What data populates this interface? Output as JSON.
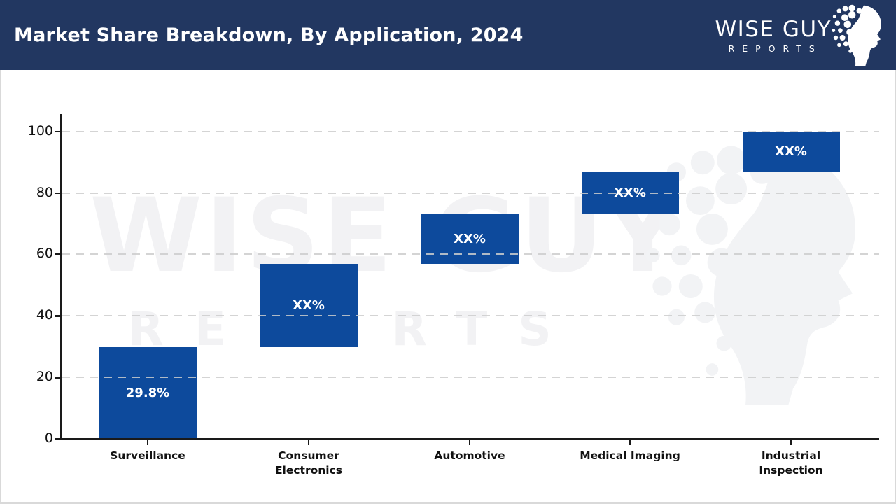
{
  "header": {
    "title": "Market Share Breakdown, By Application, 2024",
    "logo": {
      "name": "WISE GUY",
      "tagline": "REPORTS"
    }
  },
  "watermark": {
    "line1": "WISE GUY",
    "line2": "REPORTS"
  },
  "chart_data": {
    "type": "bar",
    "subtype": "waterfall",
    "title": "Market Share Breakdown, By Application, 2024",
    "unit": "%",
    "categories": [
      "Surveillance",
      "Consumer Electronics",
      "Automotive",
      "Medical Imaging",
      "Industrial Inspection"
    ],
    "segments": [
      {
        "category": "Surveillance",
        "start": 0,
        "end": 29.8,
        "label": "29.8%"
      },
      {
        "category": "Consumer Electronics",
        "start": 29.8,
        "end": 57,
        "label": "XX%"
      },
      {
        "category": "Automotive",
        "start": 57,
        "end": 73,
        "label": "XX%"
      },
      {
        "category": "Medical Imaging",
        "start": 73,
        "end": 87,
        "label": "XX%"
      },
      {
        "category": "Industrial Inspection",
        "start": 87,
        "end": 100,
        "label": "XX%"
      }
    ],
    "yticks": [
      0,
      20,
      40,
      60,
      80,
      100
    ],
    "ylim": [
      0,
      105
    ],
    "grid": {
      "axis": "y",
      "style": "dashed",
      "color": "#d4d4d4"
    },
    "legend": "none",
    "colors": {
      "bar": "#0d4a9c",
      "bar_label": "#ffffff",
      "axis": "#1a1a1a",
      "tick_label": "#111111",
      "header_bg": "#223761",
      "watermark": "#f2f2f4"
    }
  }
}
